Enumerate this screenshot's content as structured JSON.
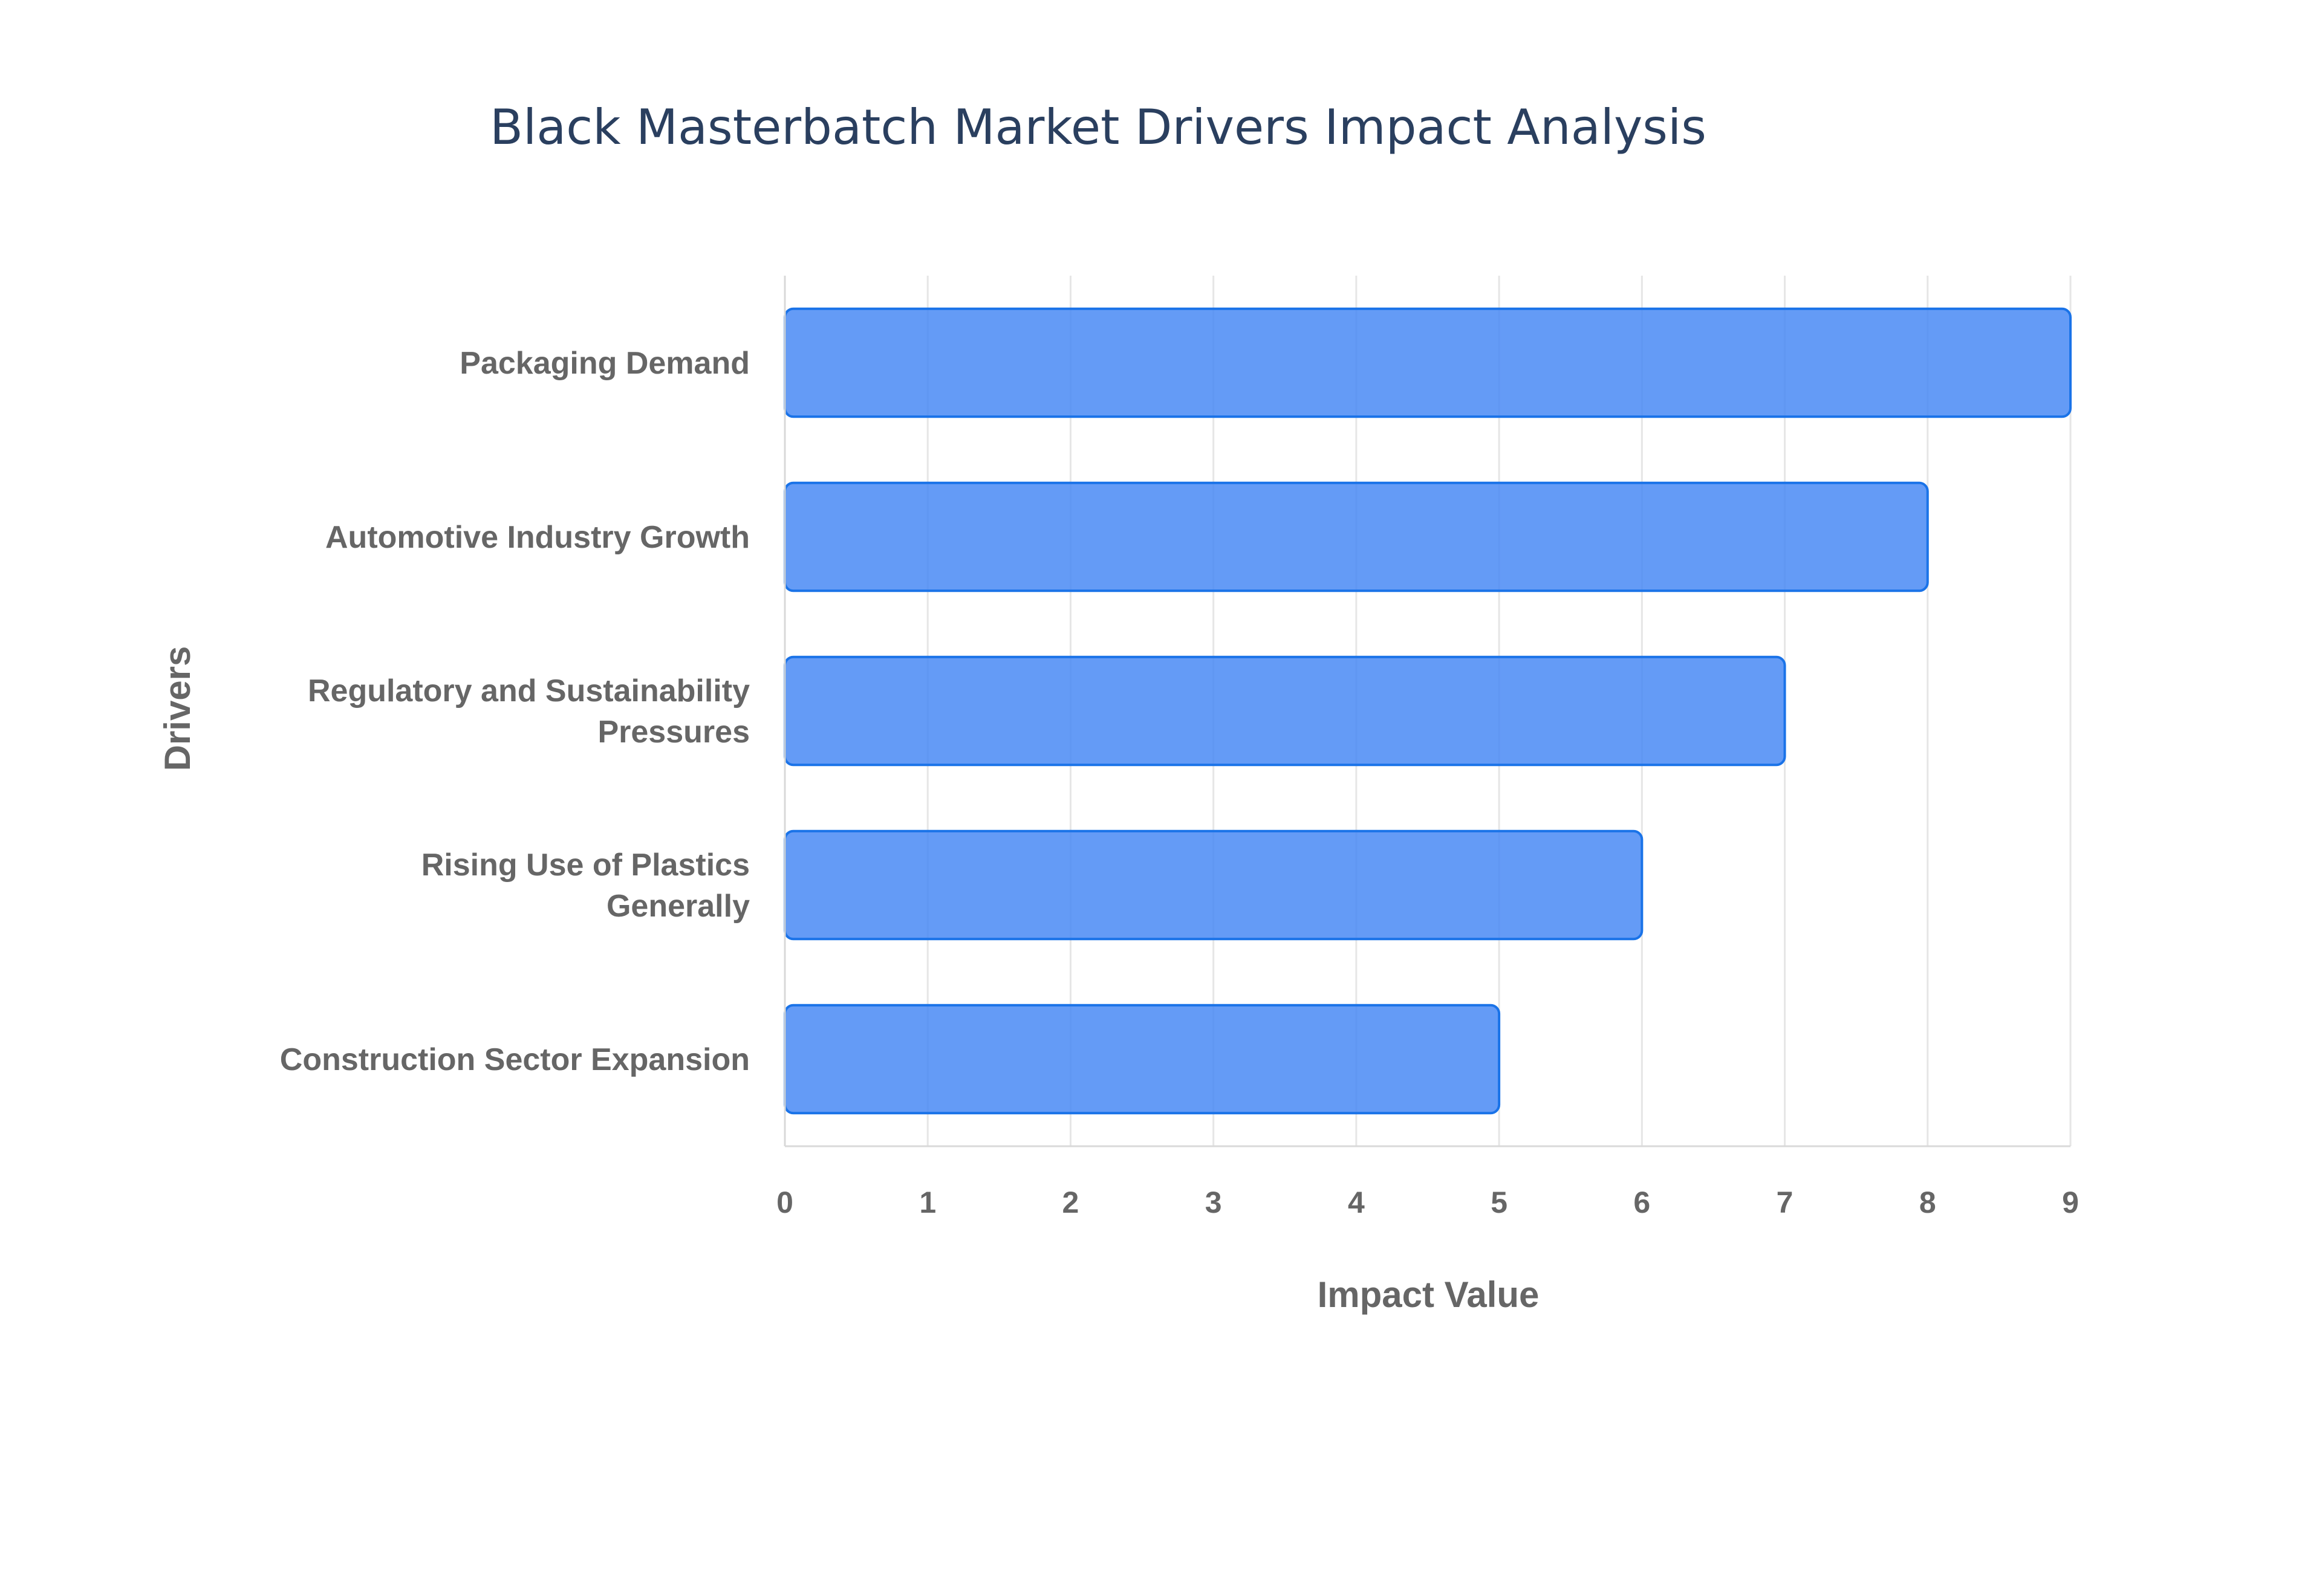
{
  "chart_data": {
    "type": "bar",
    "orientation": "horizontal",
    "title": "Black Masterbatch Market Drivers Impact Analysis",
    "xlabel": "Impact Value",
    "ylabel": "Drivers",
    "categories": [
      [
        "Packaging Demand"
      ],
      [
        "Automotive Industry Growth"
      ],
      [
        "Regulatory and Sustainability",
        "Pressures"
      ],
      [
        "Rising Use of Plastics",
        "Generally"
      ],
      [
        "Construction Sector Expansion"
      ]
    ],
    "values": [
      9,
      8,
      7,
      6,
      5
    ],
    "xlim": [
      0,
      9
    ],
    "x_ticks": [
      "0",
      "1",
      "2",
      "3",
      "4",
      "5",
      "6",
      "7",
      "8",
      "9"
    ],
    "grid": true,
    "bar_color": "#4285f4",
    "bar_border_color": "#1a73e8"
  }
}
